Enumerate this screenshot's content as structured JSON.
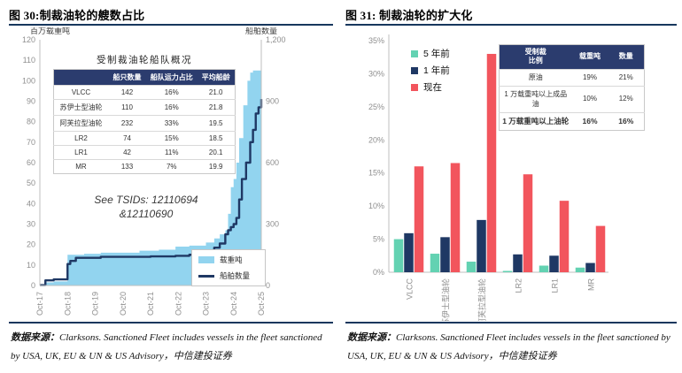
{
  "fig30": {
    "title": "图 30:制裁油轮的艘数占比",
    "caption_label": "数据来源：",
    "caption_text": "Clarksons. Sanctioned Fleet includes vessels in the fleet sanctioned by USA, UK, EU & UN & US Advisory，中信建投证券",
    "fleet_table": {
      "title": "受制裁油轮船队概况",
      "headers": [
        "",
        "船只数量",
        "船队运力占比",
        "平均船龄"
      ],
      "rows": [
        [
          "VLCC",
          "142",
          "16%",
          "21.0"
        ],
        [
          "苏伊士型油轮",
          "110",
          "16%",
          "21.8"
        ],
        [
          "阿芙拉型油轮",
          "232",
          "33%",
          "19.5"
        ],
        [
          "LR2",
          "74",
          "15%",
          "18.5"
        ],
        [
          "LR1",
          "42",
          "11%",
          "20.1"
        ],
        [
          "MR",
          "133",
          "7%",
          "19.9"
        ]
      ]
    },
    "annotation_line1": "See TSIDs: 12110694",
    "annotation_line2": "&12110690"
  },
  "fig31": {
    "title": "图 31: 制裁油轮的扩大化",
    "caption_label": "数据来源：",
    "caption_text": "Clarksons. Sanctioned Fleet includes vessels in the fleet sanctioned by USA, UK, EU & UN & US Advisory，中信建投证券",
    "ratio_table": {
      "headers": [
        "受制裁\n比例",
        "载重吨",
        "数量"
      ],
      "rows": [
        {
          "label": "原油",
          "dwt": "19%",
          "count": "21%",
          "bold": false
        },
        {
          "label": "1 万载重吨以上成品油",
          "dwt": "10%",
          "count": "12%",
          "bold": false
        },
        {
          "label": "1 万载重吨以上油轮",
          "dwt": "16%",
          "count": "16%",
          "bold": true
        }
      ]
    }
  },
  "chart_data": [
    {
      "id": "fig30-combo",
      "type": "area",
      "title": "受制裁油轮船队概况",
      "left_axis": {
        "label": "百万载重吨",
        "min": 0,
        "max": 120,
        "step": 10
      },
      "right_axis": {
        "label": "船舶数量",
        "min": 0,
        "max": 1200,
        "step": 300,
        "ticks": [
          "0",
          "300",
          "600",
          "900",
          "1,200"
        ]
      },
      "x_ticks": [
        "Oct-17",
        "Oct-18",
        "Oct-19",
        "Oct-20",
        "Oct-21",
        "Oct-22",
        "Oct-23",
        "Oct-24",
        "Oct-25"
      ],
      "x_range_years": [
        0,
        8
      ],
      "grid": false,
      "legend_position": "inside-bottom-right",
      "series": [
        {
          "name": "载重吨",
          "type": "area",
          "axis": "left",
          "color": "#92d4ef",
          "x": [
            0,
            0.2,
            0.5,
            0.98,
            1.0,
            1.6,
            2.2,
            3.0,
            3.6,
            4.3,
            4.9,
            5.4,
            6.0,
            6.3,
            6.5,
            6.7,
            6.8,
            6.9,
            7.0,
            7.1,
            7.2,
            7.35,
            7.5,
            7.6,
            7.7,
            8.0
          ],
          "values": [
            0,
            1.5,
            2,
            2,
            15,
            15.5,
            16,
            16,
            17,
            17.5,
            19,
            19.5,
            21,
            23,
            25,
            27,
            35,
            48,
            52,
            60,
            72,
            88,
            100,
            104,
            105,
            105
          ]
        },
        {
          "name": "船舶数量",
          "type": "line",
          "axis": "right",
          "color": "#1f3864",
          "x": [
            0,
            0.2,
            0.5,
            0.98,
            1.0,
            1.1,
            1.3,
            2.2,
            3.0,
            4.0,
            4.9,
            5.4,
            6.0,
            6.3,
            6.5,
            6.7,
            6.8,
            6.9,
            7.0,
            7.1,
            7.2,
            7.3,
            7.45,
            7.6,
            7.7,
            7.8,
            7.9,
            8.0
          ],
          "values": [
            2,
            25,
            30,
            30,
            105,
            120,
            135,
            140,
            140,
            142,
            145,
            150,
            160,
            185,
            205,
            250,
            270,
            285,
            300,
            330,
            420,
            520,
            600,
            700,
            760,
            840,
            870,
            910
          ]
        }
      ]
    },
    {
      "id": "fig31-bars",
      "type": "bar",
      "categories": [
        "VLCC",
        "苏伊士型油轮",
        "阿芙拉型油轮",
        "LR2",
        "LR1",
        "MR"
      ],
      "series": [
        {
          "name": "5 年前",
          "color": "#63d2b2",
          "values": [
            5.0,
            2.8,
            1.6,
            0.2,
            1.0,
            0.7
          ]
        },
        {
          "name": "1 年前",
          "color": "#1f3864",
          "values": [
            5.9,
            5.3,
            7.9,
            2.7,
            2.5,
            1.4
          ]
        },
        {
          "name": "现在",
          "color": "#f2555d",
          "values": [
            16.0,
            16.5,
            33.0,
            14.8,
            10.8,
            7.0
          ]
        }
      ],
      "y_axis": {
        "min": 0,
        "max": 35,
        "step": 5,
        "suffix": "%"
      },
      "grid": false,
      "legend_position": "inside-top-left"
    }
  ],
  "colors": {
    "rule": "#17375d",
    "table_header_bg": "#2b3c6e",
    "axis_line": "#bfbfbf",
    "axis_text": "#8f8f8f"
  }
}
